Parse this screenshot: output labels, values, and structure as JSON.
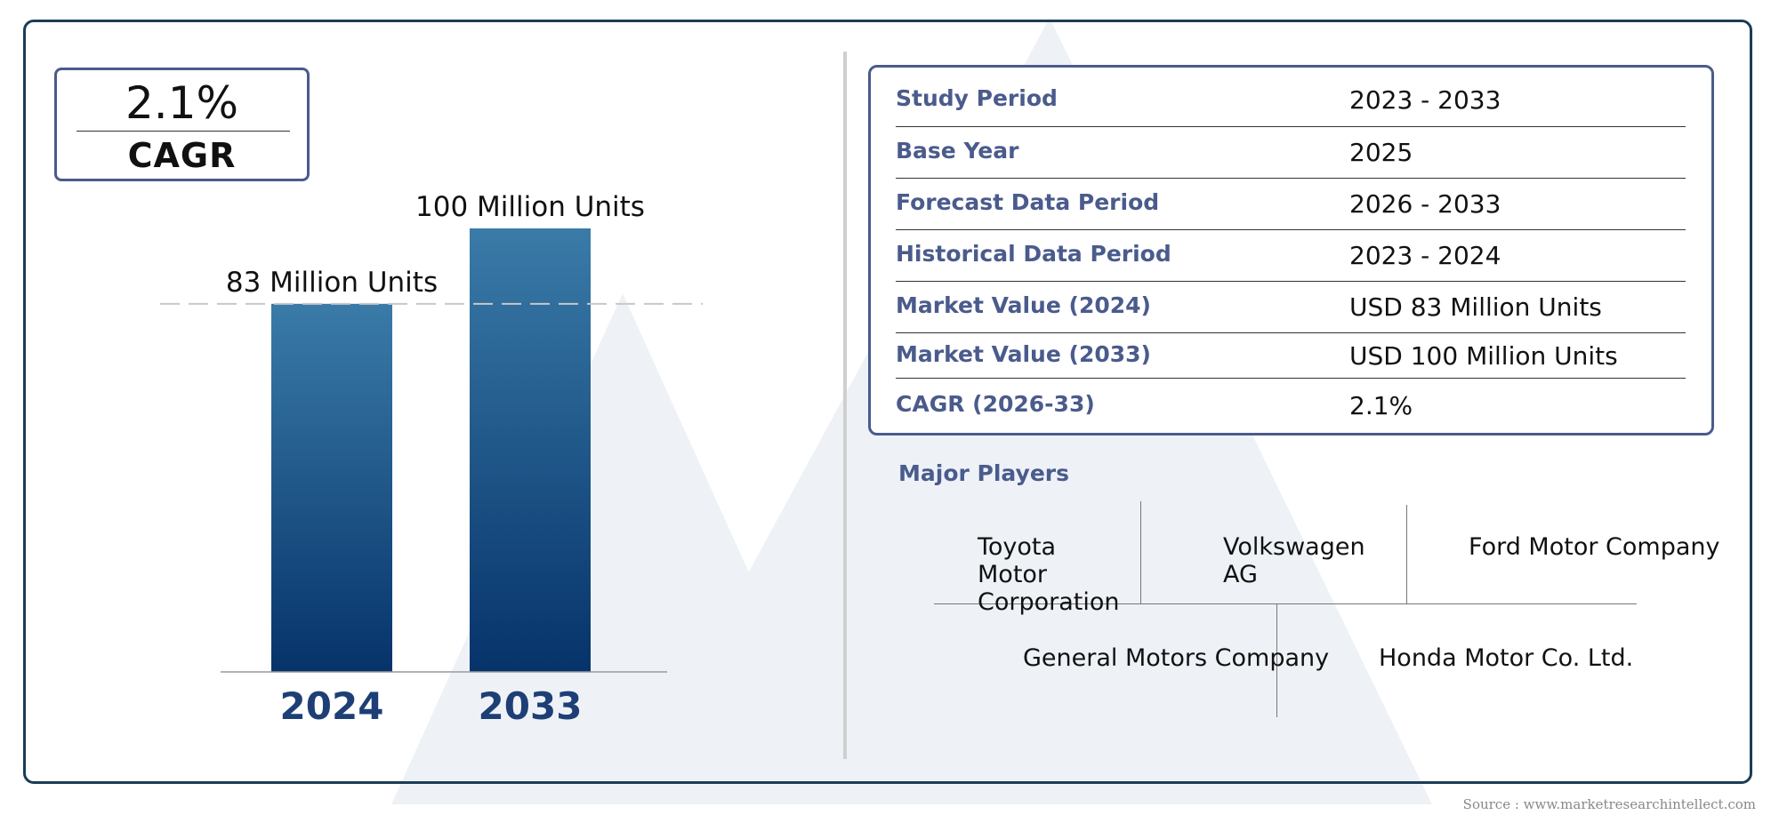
{
  "cagr_box": {
    "value": "2.1%",
    "label": "CAGR"
  },
  "chart_data": {
    "type": "bar",
    "categories": [
      "2024",
      "2033"
    ],
    "values": [
      83,
      100
    ],
    "data_labels": [
      "83 Million Units",
      "100 Million Units"
    ],
    "unit": "Million Units",
    "title": "",
    "xlabel": "",
    "ylabel": "",
    "ylim": [
      0,
      100
    ],
    "reference_line": 83,
    "colors": {
      "bar_top": "#3a7ba8",
      "bar_bottom": "#06336a",
      "year_label": "#1d3f75"
    }
  },
  "info_table": {
    "rows": [
      {
        "key": "Study Period",
        "value": "2023 - 2033"
      },
      {
        "key": "Base Year",
        "value": "2025"
      },
      {
        "key": "Forecast Data Period",
        "value": "2026 - 2033"
      },
      {
        "key": "Historical Data Period",
        "value": "2023 - 2024"
      },
      {
        "key": "Market Value (2024)",
        "value": "USD 83 Million Units"
      },
      {
        "key": "Market Value (2033)",
        "value": "USD 100 Million Units"
      },
      {
        "key": "CAGR (2026-33)",
        "value": "2.1%"
      }
    ]
  },
  "major_players": {
    "title": "Major Players",
    "names": [
      "Toyota Motor Corporation",
      "Volkswagen AG",
      "Ford Motor Company",
      "General Motors Company",
      "Honda Motor Co. Ltd."
    ]
  },
  "source": "Source : www.marketresearchintellect.com",
  "colors": {
    "frame": "#1a3d57",
    "accent": "#4a5b8c"
  }
}
